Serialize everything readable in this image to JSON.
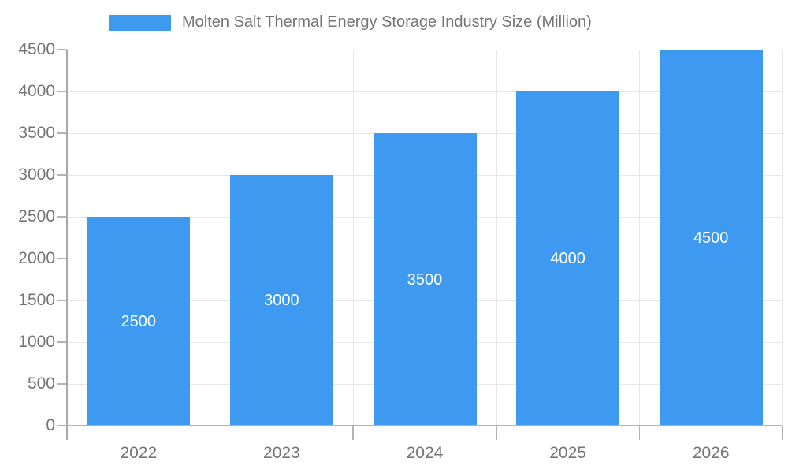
{
  "chart_data": {
    "type": "bar",
    "title": "Molten Salt Thermal Energy Storage Industry Size (Million)",
    "legend": [
      {
        "label": "Molten Salt Thermal Energy Storage Industry Size (Million)",
        "color": "#3D9AF0"
      }
    ],
    "legend_position": "top",
    "categories": [
      "2022",
      "2023",
      "2024",
      "2025",
      "2026"
    ],
    "series": [
      {
        "name": "Molten Salt Thermal Energy Storage Industry Size (Million)",
        "values": [
          2500,
          3000,
          3500,
          4000,
          4500
        ]
      }
    ],
    "bar_value_labels": [
      "2500",
      "3000",
      "3500",
      "4000",
      "4500"
    ],
    "xlabel": "",
    "ylabel": "",
    "ylim": [
      0,
      4500
    ],
    "ytick_step": 500,
    "yticks": [
      0,
      500,
      1000,
      1500,
      2000,
      2500,
      3000,
      3500,
      4000,
      4500
    ],
    "grid": true,
    "colors": {
      "bar": "#3D9AF0",
      "value_label_text": "#ffffff",
      "axis_text": "#757575",
      "axis_line": "#b3b3b3",
      "gridline": "#e7e7e7"
    }
  }
}
